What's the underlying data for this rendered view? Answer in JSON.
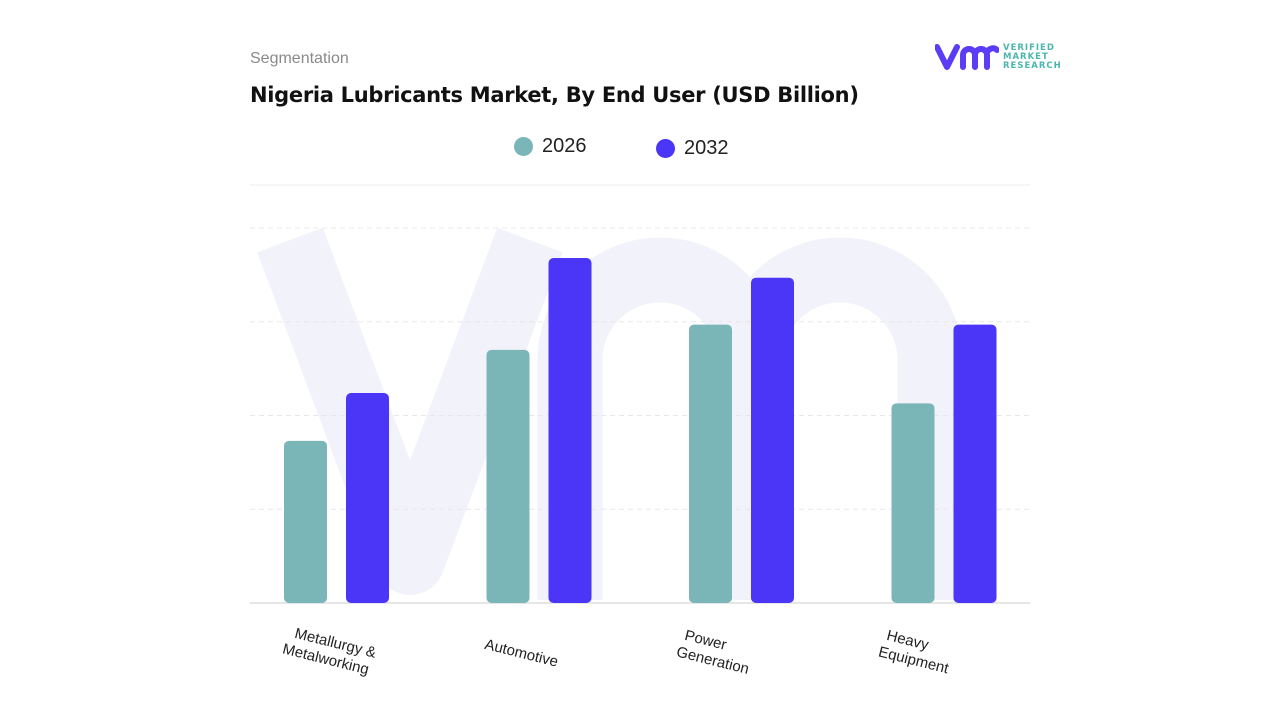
{
  "header": {
    "section": "Segmentation",
    "title": "Nigeria Lubricants Market, By End User (USD Billion)"
  },
  "logo": {
    "text_lines": [
      "VERIFIED",
      "MARKET",
      "RESEARCH"
    ],
    "color": "#4cb6ad",
    "mark_color": "#5b3df5"
  },
  "chart_data": {
    "type": "bar",
    "title": "Nigeria Lubricants Market, By End User (USD Billion)",
    "categories": [
      "Metallurgy & Metalworking",
      "Automotive",
      "Power Generation",
      "Heavy Equipment"
    ],
    "category_label_lines": [
      [
        "Metallurgy &",
        "Metalworking"
      ],
      [
        "Automotive"
      ],
      [
        "Power",
        "Generation"
      ],
      [
        "Heavy",
        "Equipment"
      ]
    ],
    "series": [
      {
        "name": "2026",
        "color": "#7ab5b8",
        "values": [
          1.73,
          2.7,
          2.97,
          2.13
        ]
      },
      {
        "name": "2032",
        "color": "#4b36f7",
        "values": [
          2.24,
          3.68,
          3.47,
          2.97
        ]
      }
    ],
    "ylim": [
      0,
      4
    ],
    "grid": true,
    "y_tick_labels_shown": false,
    "legend_position": "top-center"
  }
}
